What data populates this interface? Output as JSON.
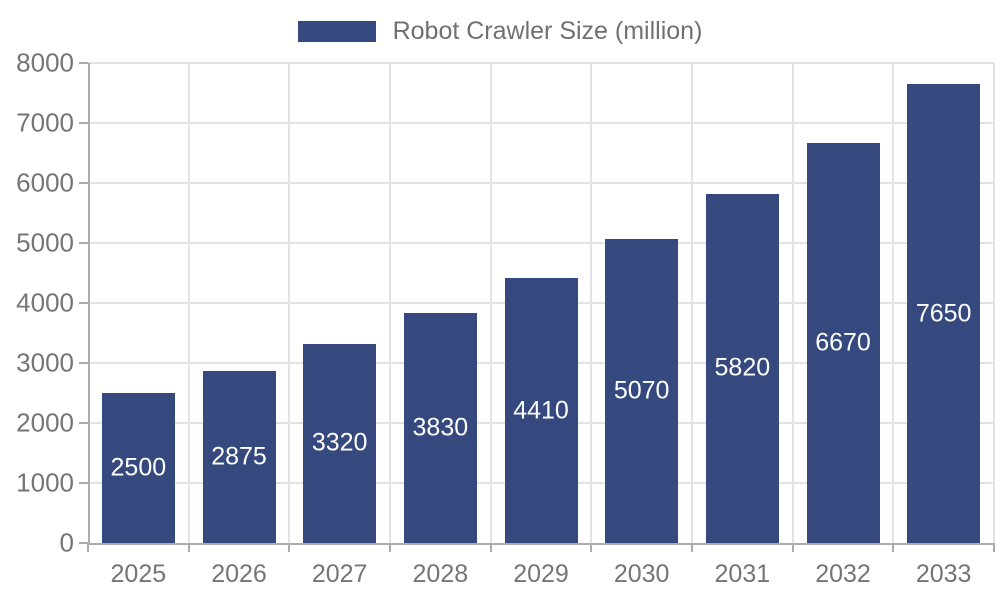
{
  "chart_data": {
    "type": "bar",
    "legend": [
      "Robot Crawler Size (million)"
    ],
    "categories": [
      "2025",
      "2026",
      "2027",
      "2028",
      "2029",
      "2030",
      "2031",
      "2032",
      "2033"
    ],
    "series": [
      {
        "name": "Robot Crawler Size (million)",
        "values": [
          2500,
          2875,
          3320,
          3830,
          4410,
          5070,
          5820,
          6670,
          7650
        ]
      }
    ],
    "value_labels": [
      "2500",
      "2875",
      "3320",
      "3830",
      "4410",
      "5070",
      "5820",
      "6670",
      "7650"
    ],
    "title": "",
    "xlabel": "",
    "ylabel": "",
    "ylim": [
      0,
      8000
    ],
    "yticks": [
      0,
      1000,
      2000,
      3000,
      4000,
      5000,
      6000,
      7000,
      8000
    ],
    "ytick_labels": [
      "0",
      "1000",
      "2000",
      "3000",
      "4000",
      "5000",
      "6000",
      "7000",
      "8000"
    ],
    "grid": true,
    "legend_position": "top-center",
    "colors": {
      "bar": "#35497e",
      "bar_value_text": "#ffffff",
      "axis_text": "#757575",
      "legend_text": "#707070",
      "gridline": "#e2e2e4",
      "axis_line": "#ababb0",
      "background": "#ffffff"
    }
  }
}
